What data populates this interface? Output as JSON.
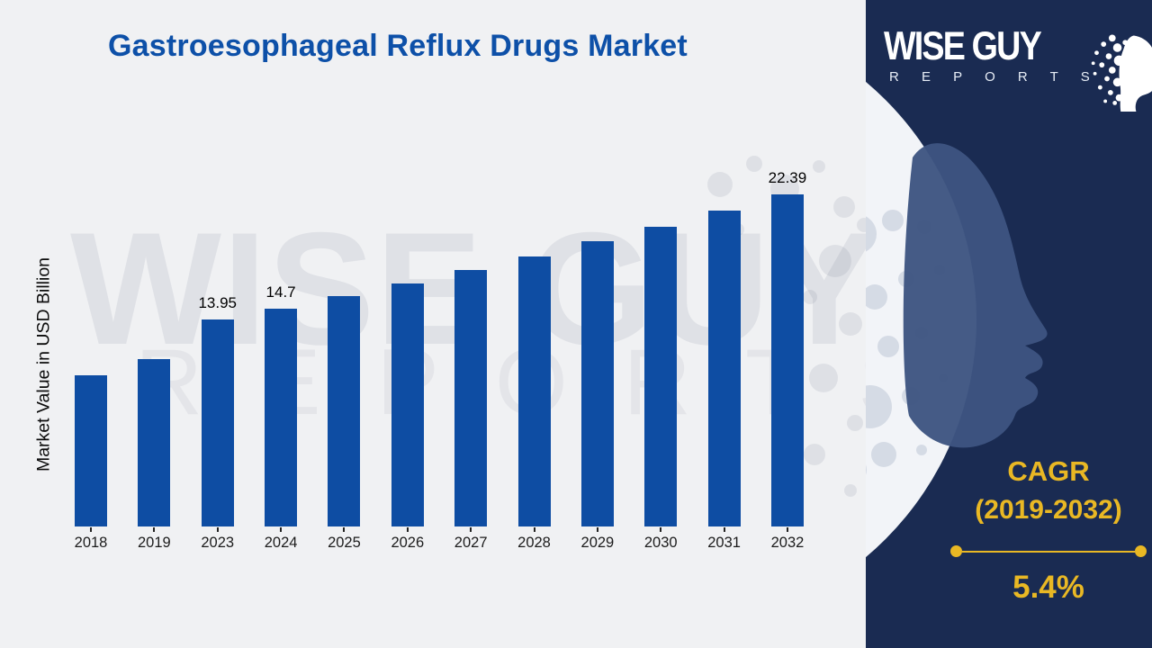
{
  "title": "Gastroesophageal Reflux Drugs Market",
  "ylabel": "Market Value in USD Billion",
  "watermark": {
    "line1": "WISE GUY",
    "line2": "REPORTS"
  },
  "logo": {
    "name": "WISE GUY",
    "subtitle": "R E P O R T S"
  },
  "cagr": {
    "label": "CAGR",
    "range": "(2019-2032)",
    "value": "5.4%"
  },
  "colors": {
    "bg": "#f0f1f3",
    "bar": "#0e4da3",
    "navy": "#1a2b52",
    "gold": "#e9b824",
    "title": "#0d50a8",
    "face_silhouette": "#3d5481",
    "circle": "#f2f4f8"
  },
  "chart_data": {
    "type": "bar",
    "title": "Gastroesophageal Reflux Drugs Market",
    "xlabel": "",
    "ylabel": "Market Value in USD Billion",
    "categories": [
      "2018",
      "2019",
      "2023",
      "2024",
      "2025",
      "2026",
      "2027",
      "2028",
      "2029",
      "2030",
      "2031",
      "2032"
    ],
    "values": [
      10.2,
      11.3,
      13.95,
      14.7,
      15.5,
      16.4,
      17.3,
      18.2,
      19.2,
      20.2,
      21.3,
      22.39
    ],
    "point_labels": {
      "2023": "13.95",
      "2024": "14.7",
      "2032": "22.39"
    },
    "ylim": [
      0,
      25.5
    ],
    "grid": false,
    "legend": "none",
    "bar_color": "#0e4da3",
    "cagr_annotation": {
      "label": "CAGR",
      "range": "(2019-2032)",
      "value": "5.4%"
    }
  }
}
